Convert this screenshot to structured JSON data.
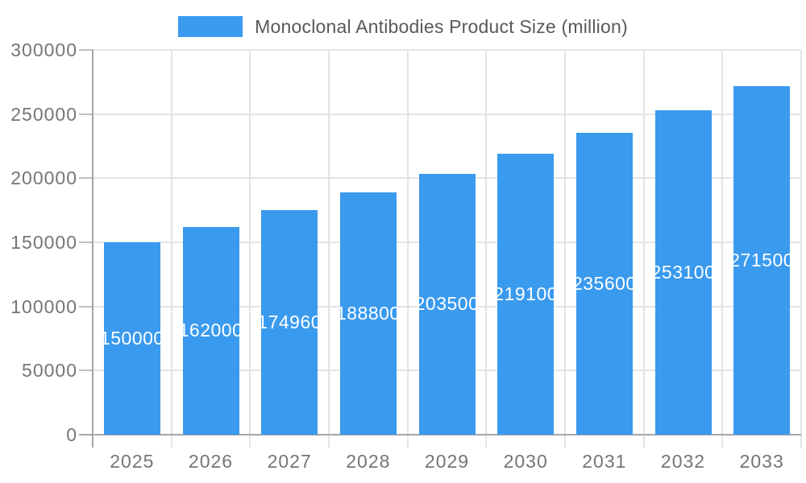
{
  "legend": {
    "label": "Monoclonal Antibodies Product Size (million)"
  },
  "chart_data": {
    "type": "bar",
    "title": "Monoclonal Antibodies Product Size (million)",
    "categories": [
      "2025",
      "2026",
      "2027",
      "2028",
      "2029",
      "2030",
      "2031",
      "2032",
      "2033"
    ],
    "values": [
      150000,
      162000,
      174960,
      188800,
      203500,
      219100,
      235600,
      253100,
      271500
    ],
    "bar_value_labels": [
      "150000",
      "162000",
      "174960",
      "188800",
      "203500",
      "219100",
      "235600",
      "253100",
      "271500"
    ],
    "xlabel": "",
    "ylabel": "",
    "ylim": [
      0,
      300000
    ],
    "y_ticks": [
      0,
      50000,
      100000,
      150000,
      200000,
      250000,
      300000
    ],
    "y_tick_labels": [
      "0",
      "50000",
      "100000",
      "150000",
      "200000",
      "250000",
      "300000"
    ],
    "grid": true,
    "legend_position": "top-center",
    "value_labels_position": "inside-center"
  },
  "colors": {
    "bar_fill": "#3A9AEE",
    "bar_label_text": "#ffffff",
    "gridline": "#e4e4e4",
    "axis_line": "#a6a6a6",
    "y_tick_mark": "#c0c0c0",
    "axis_text": "#757575",
    "title_text": "#595959",
    "background": "#ffffff"
  }
}
